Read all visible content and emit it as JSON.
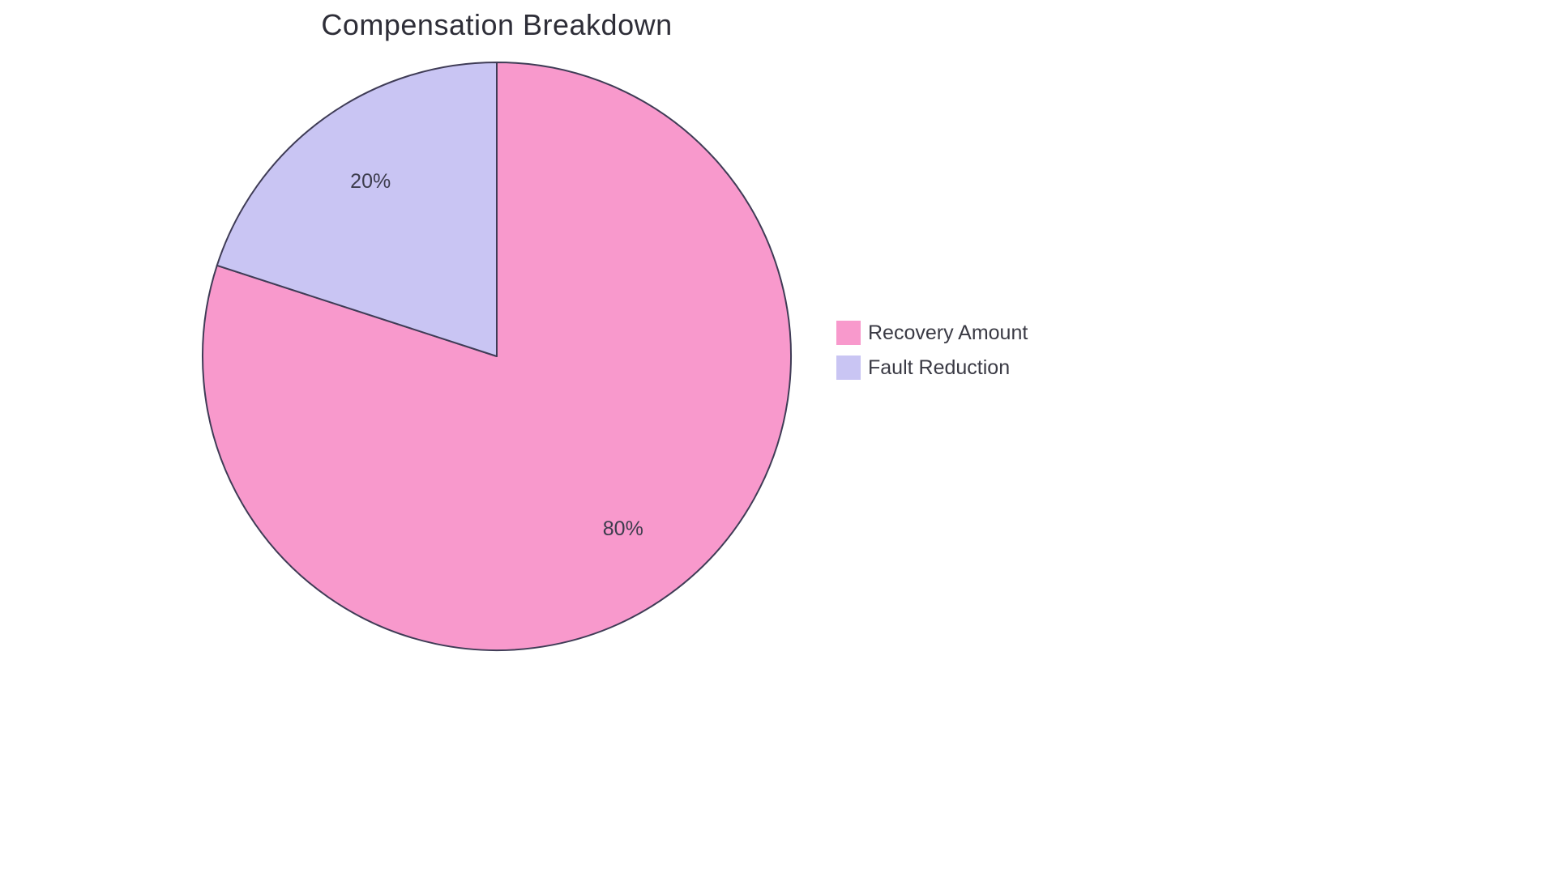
{
  "chart_data": {
    "type": "pie",
    "title": "Compensation Breakdown",
    "labels": [
      "Recovery Amount",
      "Fault Reduction"
    ],
    "values": [
      80,
      20
    ],
    "slice_text": [
      "80%",
      "20%"
    ],
    "colors": [
      "#F899CC",
      "#C9C5F3"
    ],
    "border_color": "#3F3C56",
    "text_color": "#3c3c4c",
    "start_angle_deg": 0,
    "direction": "clockwise",
    "legend_position": "right",
    "legend_items": [
      {
        "label": "Recovery Amount",
        "color": "#F899CC"
      },
      {
        "label": "Fault Reduction",
        "color": "#C9C5F3"
      }
    ]
  }
}
